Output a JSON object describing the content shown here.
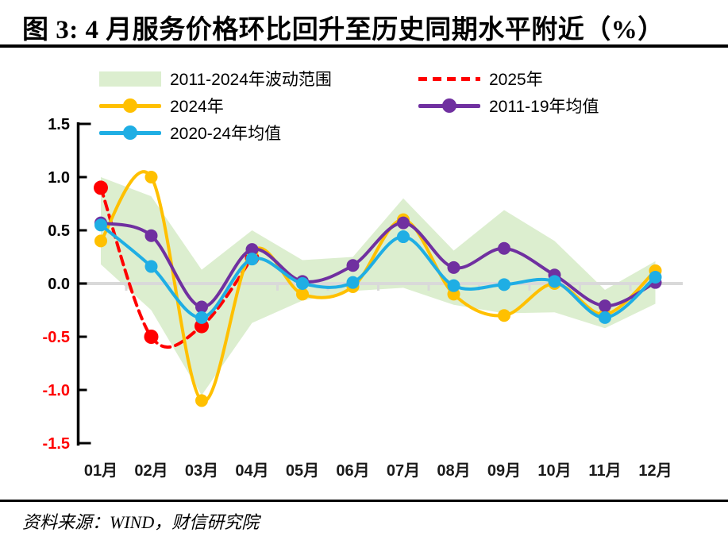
{
  "page": {
    "title": "图 3: 4 月服务价格环比回升至历史同期水平附近（%）",
    "source": "资料来源：WIND，财信研究院"
  },
  "legend": {
    "band_label": "2011-2024年波动范围",
    "y2024_label": "2024年",
    "avg2020_label": "2020-24年均值",
    "y2025_label": "2025年",
    "avg2011_label": "2011-19年均值"
  },
  "chart_data": {
    "type": "line",
    "categories": [
      "01月",
      "02月",
      "03月",
      "04月",
      "05月",
      "06月",
      "07月",
      "08月",
      "09月",
      "10月",
      "11月",
      "12月"
    ],
    "y_ticks": [
      1.5,
      1.0,
      0.5,
      0.0,
      -0.5,
      -1.0,
      -1.5
    ],
    "ylim": [
      -1.5,
      1.5
    ],
    "grid": "zero-line-only",
    "legend_position": "top",
    "colors": {
      "zero_line": "#D9D9D9",
      "negative_label": "#FF0000",
      "axis": "#000000"
    },
    "band": {
      "name": "2011-2024年波动范围",
      "color": "#DCEECF",
      "max": [
        1.0,
        0.82,
        0.13,
        0.5,
        0.22,
        0.25,
        0.8,
        0.31,
        0.69,
        0.4,
        -0.06,
        0.21
      ],
      "min": [
        0.18,
        -0.25,
        -1.05,
        -0.37,
        -0.16,
        -0.07,
        -0.04,
        -0.2,
        -0.28,
        -0.27,
        -0.42,
        -0.19
      ]
    },
    "series": [
      {
        "name": "2025年",
        "color": "#FF0000",
        "dashed": true,
        "dot_r": 9,
        "values": [
          0.9,
          -0.5,
          -0.4,
          0.24,
          null,
          null,
          null,
          null,
          null,
          null,
          null,
          null
        ]
      },
      {
        "name": "2024年",
        "color": "#FFC000",
        "dashed": false,
        "dot_r": 8,
        "values": [
          0.4,
          1.0,
          -1.1,
          0.3,
          -0.1,
          -0.03,
          0.6,
          -0.1,
          -0.3,
          0.0,
          -0.29,
          0.12
        ]
      },
      {
        "name": "2011-19年均值",
        "color": "#7030A0",
        "dashed": false,
        "dot_r": 8,
        "values": [
          0.57,
          0.45,
          -0.22,
          0.32,
          0.02,
          0.17,
          0.57,
          0.15,
          0.33,
          0.08,
          -0.21,
          0.01
        ]
      },
      {
        "name": "2020-24年均值",
        "color": "#1FAEE4",
        "dashed": false,
        "dot_r": 8,
        "values": [
          0.55,
          0.16,
          -0.32,
          0.23,
          0.0,
          0.01,
          0.44,
          -0.02,
          -0.01,
          0.02,
          -0.32,
          0.06
        ]
      }
    ]
  }
}
